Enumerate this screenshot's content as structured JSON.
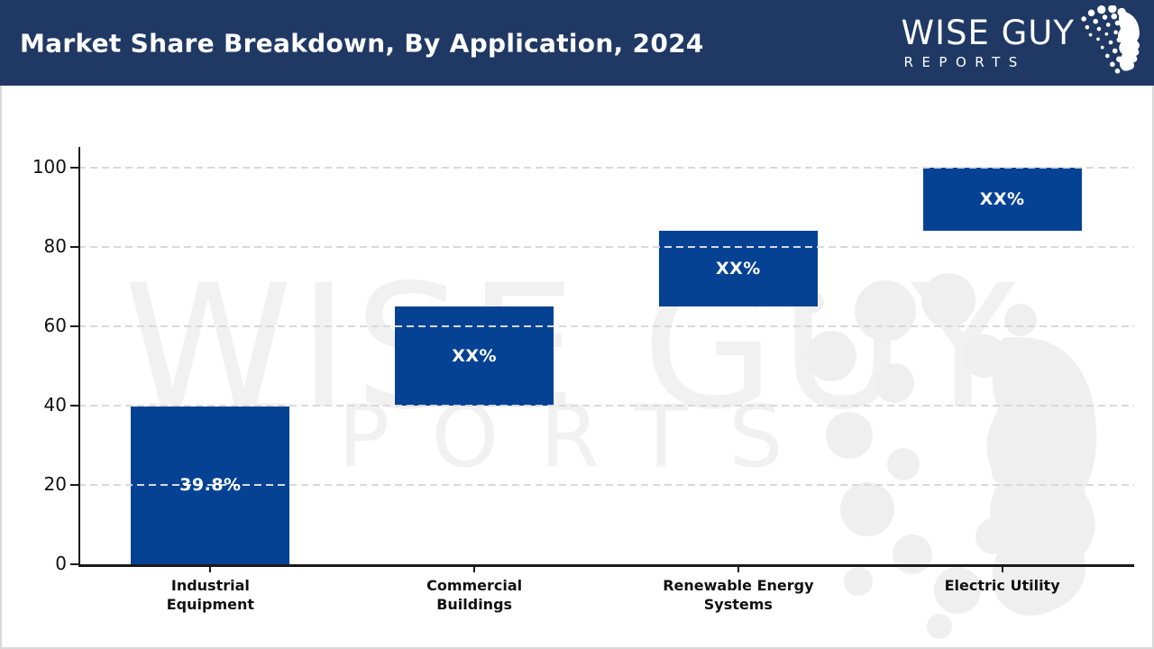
{
  "header": {
    "title": "Market Share Breakdown, By Application, 2024",
    "bg_color": "#1F3864",
    "logo": {
      "wordmark": "WISE GUY",
      "subtext": "REPORTS"
    }
  },
  "watermark": {
    "line1": "WISE GUY",
    "line2": "REPORTS"
  },
  "chart_data": {
    "type": "bar",
    "subtype": "stacked-waterfall",
    "title": "Market Share Breakdown, By Application, 2024",
    "categories": [
      "Industrial Equipment",
      "Commercial Buildings",
      "Renewable Energy Systems",
      "Electric Utility"
    ],
    "bars": [
      {
        "category": "Industrial Equipment",
        "label_lines": [
          "Industrial",
          "Equipment"
        ],
        "base": 0,
        "top": 39.8,
        "value_label": "39.8%"
      },
      {
        "category": "Commercial Buildings",
        "label_lines": [
          "Commercial",
          "Buildings"
        ],
        "base": 40,
        "top": 65,
        "value_label": "XX%"
      },
      {
        "category": "Renewable Energy Systems",
        "label_lines": [
          "Renewable Energy",
          "Systems"
        ],
        "base": 65,
        "top": 84,
        "value_label": "XX%"
      },
      {
        "category": "Electric Utility",
        "label_lines": [
          "Electric Utility"
        ],
        "base": 84,
        "top": 100,
        "value_label": "XX%"
      }
    ],
    "y_ticks": [
      0,
      20,
      40,
      60,
      80,
      100
    ],
    "ylim": [
      0,
      105
    ],
    "grid": {
      "horizontal": true,
      "style": "dashed",
      "color": "#D9D9D9",
      "drawn_over_bars": true
    },
    "bar_color": "#054294",
    "value_label_color": "#FFFFFF",
    "axis_color": "#1a1a1a",
    "legend": null
  }
}
